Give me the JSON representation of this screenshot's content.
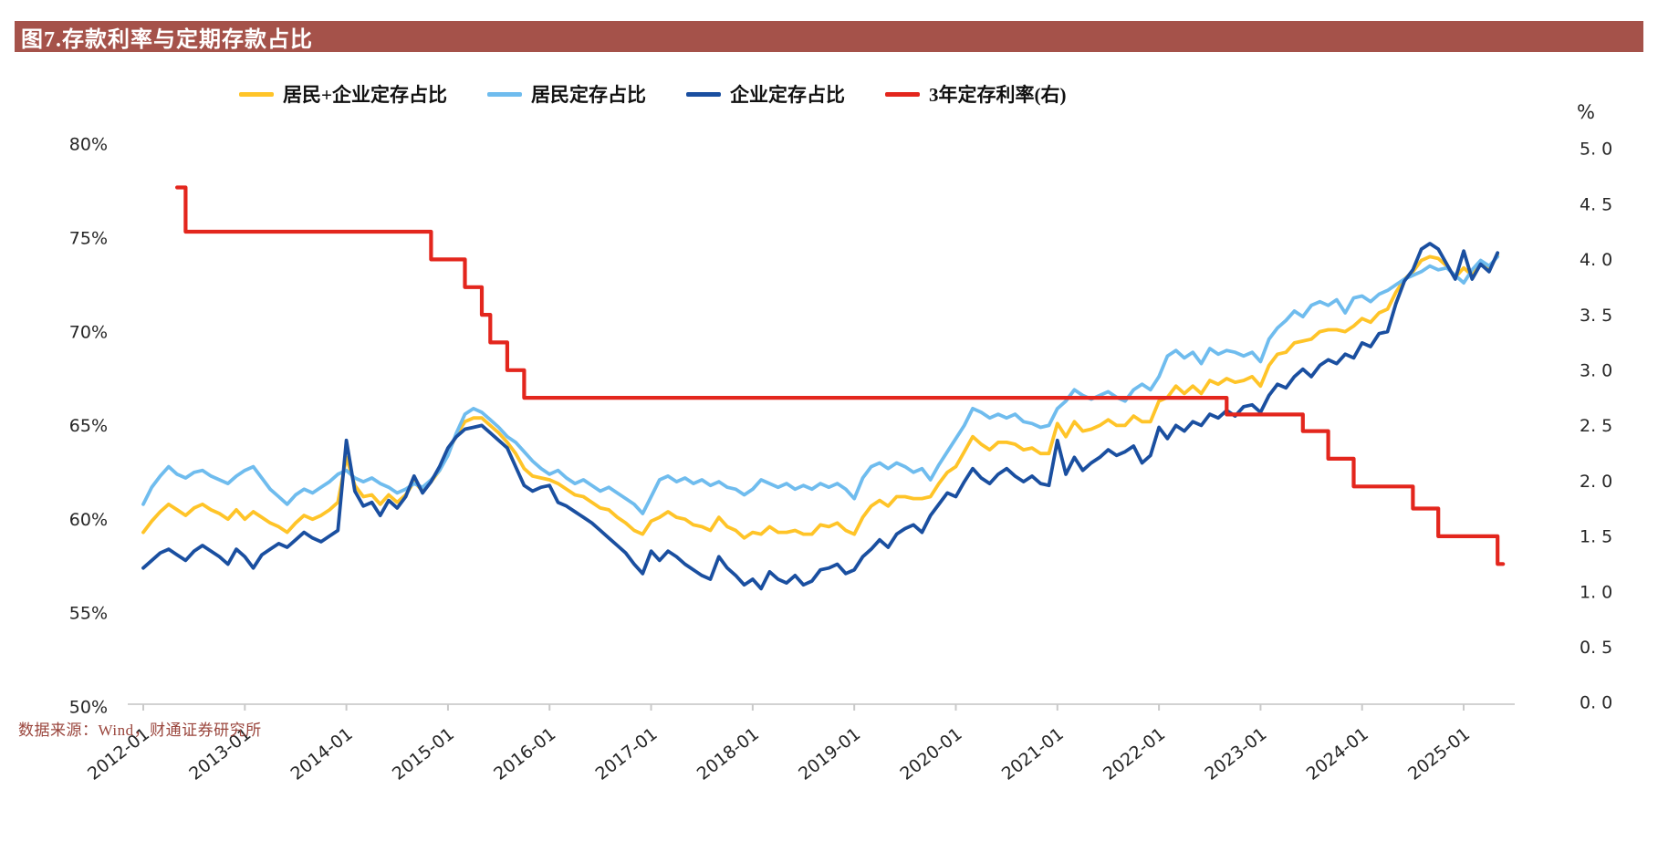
{
  "title": "图7.存款利率与定期存款占比",
  "source_note": "数据来源：Wind，财通证券研究所",
  "colors": {
    "title_bar_bg": "#A5524A",
    "title_text": "#FFFFFF",
    "source_text": "#9A453C",
    "axis_line": "#D2D2D2",
    "tick_mark": "#C9C9C9"
  },
  "chart_data": {
    "type": "line",
    "x_unit": "month",
    "x_start": "2012-01",
    "x_end": "2025-05",
    "grid": false,
    "legend_position": "top",
    "x_tick_labels": [
      "2012-01",
      "2013-01",
      "2014-01",
      "2015-01",
      "2016-01",
      "2017-01",
      "2018-01",
      "2019-01",
      "2020-01",
      "2021-01",
      "2022-01",
      "2023-01",
      "2024-01",
      "2025-01"
    ],
    "left_axis": {
      "tick_labels": [
        "80%",
        "75%",
        "70%",
        "65%",
        "60%",
        "55%",
        "50%"
      ],
      "tick_values": [
        80,
        75,
        70,
        65,
        60,
        55,
        50
      ],
      "min": 50,
      "max": 80
    },
    "right_axis": {
      "unit_label": "%",
      "tick_labels": [
        "5. 0",
        "4. 5",
        "4. 0",
        "3. 5",
        "3. 0",
        "2. 5",
        "2. 0",
        "1. 5",
        "1. 0",
        "0. 5",
        "0. 0"
      ],
      "tick_values": [
        5.0,
        4.5,
        4.0,
        3.5,
        3.0,
        2.5,
        2.0,
        1.5,
        1.0,
        0.5,
        0.0
      ],
      "min": 0,
      "max": 5
    },
    "series": [
      {
        "name": "居民+企业定存占比",
        "color": "#FFC428",
        "axis": "left",
        "style": "line",
        "width": 3.8,
        "values": [
          59.3,
          59.9,
          60.4,
          60.8,
          60.5,
          60.2,
          60.6,
          60.8,
          60.5,
          60.3,
          60.0,
          60.5,
          60.0,
          60.4,
          60.1,
          59.8,
          59.6,
          59.3,
          59.8,
          60.2,
          60.0,
          60.2,
          60.5,
          60.9,
          63.3,
          61.8,
          61.2,
          61.3,
          60.8,
          61.3,
          60.9,
          61.3,
          62.0,
          61.5,
          62.0,
          62.6,
          63.5,
          64.5,
          65.2,
          65.4,
          65.4,
          65.0,
          64.6,
          64.1,
          63.5,
          62.7,
          62.3,
          62.2,
          62.1,
          61.9,
          61.6,
          61.3,
          61.2,
          60.9,
          60.6,
          60.5,
          60.1,
          59.8,
          59.4,
          59.2,
          59.9,
          60.1,
          60.4,
          60.1,
          60.0,
          59.7,
          59.6,
          59.4,
          60.1,
          59.6,
          59.4,
          59.0,
          59.3,
          59.2,
          59.6,
          59.3,
          59.3,
          59.4,
          59.2,
          59.2,
          59.7,
          59.6,
          59.8,
          59.4,
          59.2,
          60.1,
          60.7,
          61.0,
          60.7,
          61.2,
          61.2,
          61.1,
          61.1,
          61.2,
          61.9,
          62.5,
          62.8,
          63.6,
          64.4,
          64.0,
          63.7,
          64.1,
          64.1,
          64.0,
          63.7,
          63.8,
          63.5,
          63.5,
          65.1,
          64.4,
          65.2,
          64.7,
          64.8,
          65.0,
          65.3,
          65.0,
          65.0,
          65.5,
          65.2,
          65.2,
          66.3,
          66.5,
          67.1,
          66.7,
          67.1,
          66.7,
          67.4,
          67.2,
          67.5,
          67.3,
          67.4,
          67.6,
          67.1,
          68.2,
          68.8,
          68.9,
          69.4,
          69.5,
          69.6,
          70.0,
          70.1,
          70.1,
          70.0,
          70.3,
          70.7,
          70.5,
          71.0,
          71.2,
          72.1,
          72.8,
          73.2,
          73.8,
          74.0,
          73.9,
          73.5,
          72.9,
          73.4,
          73.0,
          73.7,
          73.3,
          74.1
        ]
      },
      {
        "name": "居民定存占比",
        "color": "#6FBCEE",
        "axis": "left",
        "style": "line",
        "width": 3.8,
        "values": [
          60.8,
          61.7,
          62.3,
          62.8,
          62.4,
          62.2,
          62.5,
          62.6,
          62.3,
          62.1,
          61.9,
          62.3,
          62.6,
          62.8,
          62.2,
          61.6,
          61.2,
          60.8,
          61.3,
          61.6,
          61.4,
          61.7,
          62.0,
          62.4,
          62.6,
          62.2,
          62.0,
          62.2,
          61.9,
          61.7,
          61.4,
          61.6,
          61.9,
          61.7,
          62.1,
          62.6,
          63.4,
          64.6,
          65.6,
          65.9,
          65.7,
          65.3,
          64.9,
          64.4,
          64.1,
          63.6,
          63.1,
          62.7,
          62.4,
          62.6,
          62.2,
          61.9,
          62.1,
          61.8,
          61.5,
          61.7,
          61.4,
          61.1,
          60.8,
          60.3,
          61.2,
          62.1,
          62.3,
          62.0,
          62.2,
          61.9,
          62.1,
          61.8,
          62.0,
          61.7,
          61.6,
          61.3,
          61.6,
          62.1,
          61.9,
          61.7,
          61.9,
          61.6,
          61.8,
          61.6,
          61.9,
          61.7,
          61.9,
          61.6,
          61.1,
          62.2,
          62.8,
          63.0,
          62.7,
          63.0,
          62.8,
          62.5,
          62.7,
          62.1,
          62.9,
          63.6,
          64.3,
          65.0,
          65.9,
          65.7,
          65.4,
          65.6,
          65.4,
          65.6,
          65.2,
          65.1,
          64.9,
          65.0,
          65.9,
          66.3,
          66.9,
          66.6,
          66.4,
          66.6,
          66.8,
          66.5,
          66.3,
          66.9,
          67.2,
          66.9,
          67.6,
          68.7,
          69.0,
          68.6,
          68.9,
          68.3,
          69.1,
          68.8,
          69.0,
          68.9,
          68.7,
          68.9,
          68.4,
          69.6,
          70.2,
          70.6,
          71.1,
          70.8,
          71.4,
          71.6,
          71.4,
          71.7,
          71.0,
          71.8,
          71.9,
          71.6,
          72.0,
          72.2,
          72.5,
          72.8,
          73.0,
          73.2,
          73.5,
          73.3,
          73.4,
          73.0,
          72.6,
          73.3,
          73.8,
          73.5,
          74.0
        ]
      },
      {
        "name": "企业定存占比",
        "color": "#1A4FA0",
        "axis": "left",
        "style": "line",
        "width": 3.8,
        "values": [
          57.4,
          57.8,
          58.2,
          58.4,
          58.1,
          57.8,
          58.3,
          58.6,
          58.3,
          58.0,
          57.6,
          58.4,
          58.0,
          57.4,
          58.1,
          58.4,
          58.7,
          58.5,
          58.9,
          59.3,
          59.0,
          58.8,
          59.1,
          59.4,
          64.2,
          61.5,
          60.7,
          60.9,
          60.2,
          61.0,
          60.6,
          61.2,
          62.3,
          61.4,
          62.0,
          62.8,
          63.8,
          64.4,
          64.8,
          64.9,
          65.0,
          64.6,
          64.2,
          63.8,
          62.8,
          61.8,
          61.5,
          61.7,
          61.8,
          60.9,
          60.7,
          60.4,
          60.1,
          59.8,
          59.4,
          59.0,
          58.6,
          58.2,
          57.6,
          57.1,
          58.3,
          57.8,
          58.3,
          58.0,
          57.6,
          57.3,
          57.0,
          56.8,
          58.0,
          57.4,
          57.0,
          56.5,
          56.8,
          56.3,
          57.2,
          56.8,
          56.6,
          57.0,
          56.5,
          56.7,
          57.3,
          57.4,
          57.6,
          57.1,
          57.3,
          58.0,
          58.4,
          58.9,
          58.5,
          59.2,
          59.5,
          59.7,
          59.3,
          60.2,
          60.8,
          61.4,
          61.2,
          62.0,
          62.7,
          62.2,
          61.9,
          62.4,
          62.7,
          62.3,
          62.0,
          62.3,
          61.9,
          61.8,
          64.2,
          62.4,
          63.3,
          62.6,
          63.0,
          63.3,
          63.7,
          63.4,
          63.6,
          63.9,
          63.0,
          63.4,
          64.9,
          64.3,
          65.0,
          64.7,
          65.2,
          65.0,
          65.6,
          65.4,
          65.8,
          65.5,
          66.0,
          66.1,
          65.7,
          66.6,
          67.2,
          67.0,
          67.6,
          68.0,
          67.6,
          68.2,
          68.5,
          68.3,
          68.8,
          68.6,
          69.4,
          69.2,
          69.9,
          70.0,
          71.5,
          72.7,
          73.3,
          74.4,
          74.7,
          74.4,
          73.6,
          72.8,
          74.3,
          72.8,
          73.6,
          73.2,
          74.2
        ]
      },
      {
        "name": "3年定存利率(右)",
        "color": "#E3261D",
        "axis": "right",
        "style": "step",
        "width": 4.2,
        "values": [
          null,
          null,
          null,
          null,
          4.65,
          4.25,
          4.25,
          4.25,
          4.25,
          4.25,
          4.25,
          4.25,
          4.25,
          4.25,
          4.25,
          4.25,
          4.25,
          4.25,
          4.25,
          4.25,
          4.25,
          4.25,
          4.25,
          4.25,
          4.25,
          4.25,
          4.25,
          4.25,
          4.25,
          4.25,
          4.25,
          4.25,
          4.25,
          4.25,
          4.0,
          4.0,
          4.0,
          4.0,
          3.75,
          3.75,
          3.5,
          3.25,
          3.25,
          3.0,
          3.0,
          2.75,
          2.75,
          2.75,
          2.75,
          2.75,
          2.75,
          2.75,
          2.75,
          2.75,
          2.75,
          2.75,
          2.75,
          2.75,
          2.75,
          2.75,
          2.75,
          2.75,
          2.75,
          2.75,
          2.75,
          2.75,
          2.75,
          2.75,
          2.75,
          2.75,
          2.75,
          2.75,
          2.75,
          2.75,
          2.75,
          2.75,
          2.75,
          2.75,
          2.75,
          2.75,
          2.75,
          2.75,
          2.75,
          2.75,
          2.75,
          2.75,
          2.75,
          2.75,
          2.75,
          2.75,
          2.75,
          2.75,
          2.75,
          2.75,
          2.75,
          2.75,
          2.75,
          2.75,
          2.75,
          2.75,
          2.75,
          2.75,
          2.75,
          2.75,
          2.75,
          2.75,
          2.75,
          2.75,
          2.75,
          2.75,
          2.75,
          2.75,
          2.75,
          2.75,
          2.75,
          2.75,
          2.75,
          2.75,
          2.75,
          2.75,
          2.75,
          2.75,
          2.75,
          2.75,
          2.75,
          2.75,
          2.75,
          2.75,
          2.6,
          2.6,
          2.6,
          2.6,
          2.6,
          2.6,
          2.6,
          2.6,
          2.6,
          2.45,
          2.45,
          2.45,
          2.2,
          2.2,
          2.2,
          1.95,
          1.95,
          1.95,
          1.95,
          1.95,
          1.95,
          1.95,
          1.75,
          1.75,
          1.75,
          1.5,
          1.5,
          1.5,
          1.5,
          1.5,
          1.5,
          1.5,
          1.25
        ]
      }
    ]
  }
}
